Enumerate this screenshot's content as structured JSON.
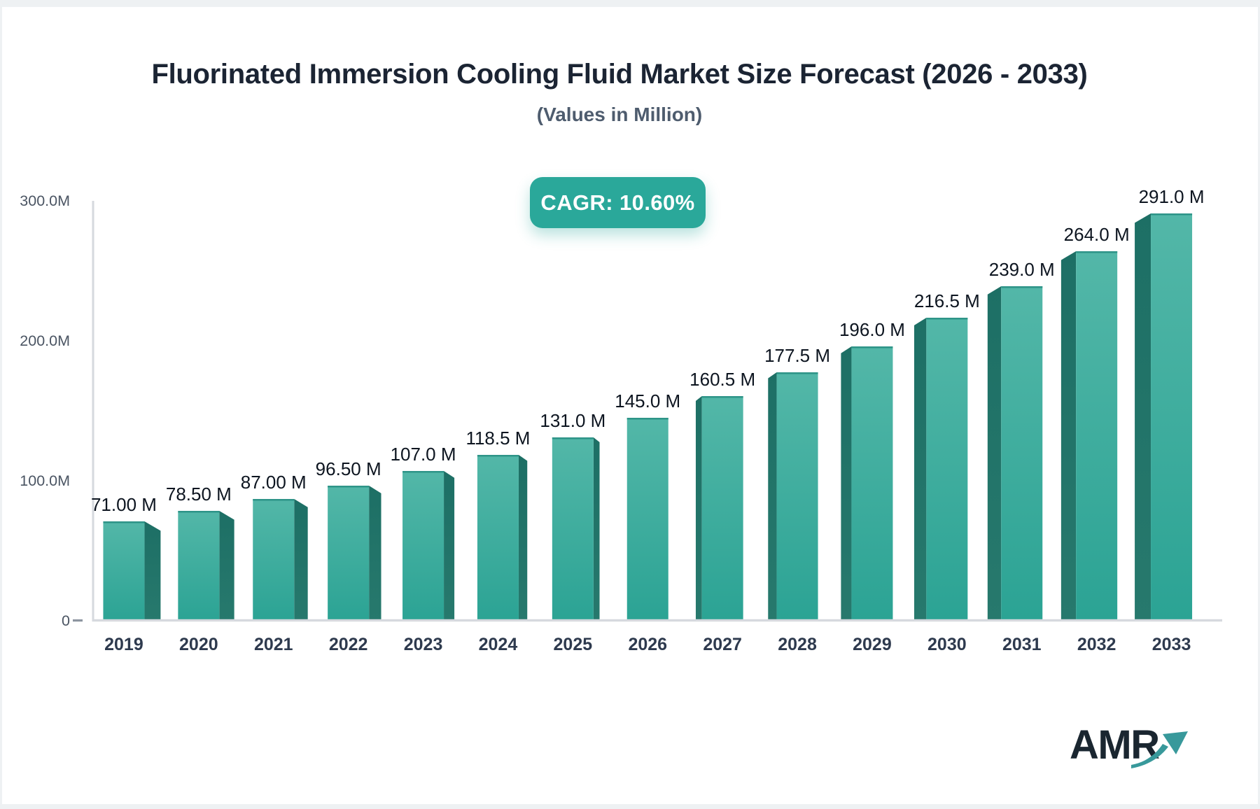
{
  "header": {
    "title": "Fluorinated Immersion Cooling Fluid Market Size Forecast (2026 - 2033)",
    "subtitle": "(Values in Million)"
  },
  "cagr_badge": {
    "label": "CAGR: 10.60%",
    "background": "#2aa89a",
    "text_color": "#ffffff"
  },
  "chart_data": {
    "type": "bar",
    "title": "Fluorinated Immersion Cooling Fluid Market Size Forecast (2026 - 2033)",
    "subtitle": "(Values in Million)",
    "unit": "Million",
    "categories": [
      "2019",
      "2020",
      "2021",
      "2022",
      "2023",
      "2024",
      "2025",
      "2026",
      "2027",
      "2028",
      "2029",
      "2030",
      "2031",
      "2032",
      "2033"
    ],
    "values": [
      71.0,
      78.5,
      87.0,
      96.5,
      107.0,
      118.5,
      131.0,
      145.0,
      160.5,
      177.5,
      196.0,
      216.5,
      239.0,
      264.0,
      291.0
    ],
    "value_labels": [
      "71.00 M",
      "78.50 M",
      "87.00 M",
      "96.50 M",
      "107.0 M",
      "118.5 M",
      "131.0 M",
      "145.0 M",
      "160.5 M",
      "177.5 M",
      "196.0 M",
      "216.5 M",
      "239.0 M",
      "264.0 M",
      "291.0 M"
    ],
    "ylim": [
      0,
      300
    ],
    "yticks": [
      {
        "value": 0,
        "label": "0"
      },
      {
        "value": 100,
        "label": "100.0M"
      },
      {
        "value": 200,
        "label": "200.0M"
      },
      {
        "value": 300,
        "label": "300.0M"
      }
    ],
    "grid": false,
    "legend": false,
    "style": "pseudo-3d-bars",
    "colors": {
      "bar_front_top": "#53b7a8",
      "bar_front_bottom": "#2ba394",
      "bar_side_top": "#1d6f65",
      "bar_side_bottom": "#27796d",
      "bar_top_edge": "#2e9488",
      "axis_line": "#d6d9de",
      "zero_tick": "#8d95a0",
      "x_label": "#2e3a4e",
      "y_label": "#4b5563",
      "value_label": "#0d1520"
    }
  },
  "logo": {
    "text": "AMR",
    "text_color": "#1a2630",
    "arrow_color": "#38999b"
  }
}
